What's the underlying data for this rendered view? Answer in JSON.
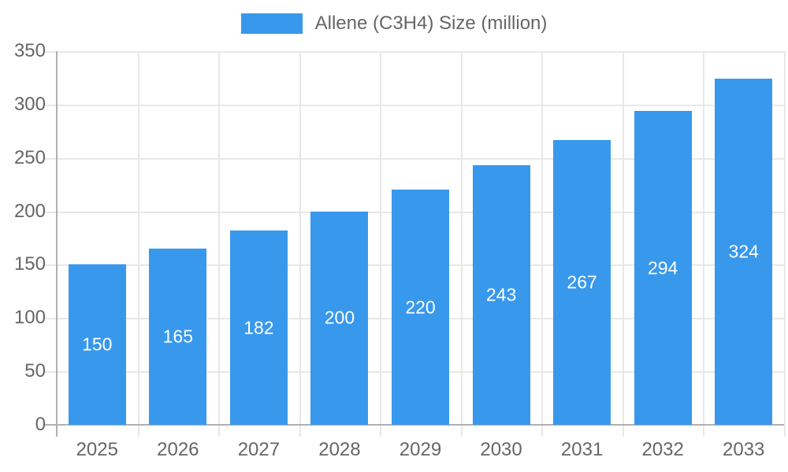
{
  "legend": {
    "label": "Allene (C3H4) Size (million)"
  },
  "colors": {
    "bar": "#3898EC",
    "axis_text": "#666666",
    "gridline": "#e8e8e8",
    "axis_line": "#b0b0b0",
    "value_label": "#ffffff"
  },
  "chart_data": {
    "type": "bar",
    "title": "",
    "categories": [
      "2025",
      "2026",
      "2027",
      "2028",
      "2029",
      "2030",
      "2031",
      "2032",
      "2033"
    ],
    "series": [
      {
        "name": "Allene (C3H4) Size (million)",
        "values": [
          150,
          165,
          182,
          200,
          220,
          243,
          267,
          294,
          324
        ]
      }
    ],
    "value_labels_shown": true,
    "xlabel": "",
    "ylabel": "",
    "ylim": [
      0,
      350
    ],
    "yticks": [
      0,
      50,
      100,
      150,
      200,
      250,
      300,
      350
    ],
    "grid": true,
    "legend_position": "top"
  }
}
